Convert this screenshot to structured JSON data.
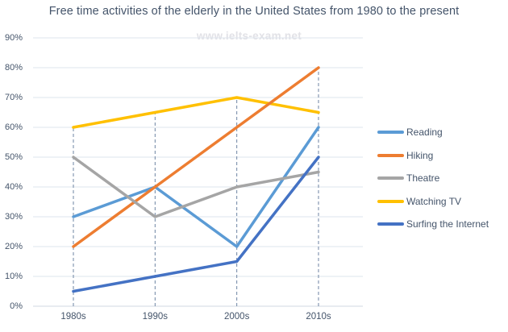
{
  "chart": {
    "title": "Free time activities of the elderly in the United States from 1980 to the present",
    "watermark": "www.ielts-exam.net"
  },
  "chart_data": {
    "type": "line",
    "title": "Free time activities of the elderly in the United States from 1980 to the present",
    "watermark": "www.ielts-exam.net",
    "categories": [
      "1980s",
      "1990s",
      "2000s",
      "2010s"
    ],
    "y_ticks": [
      "0%",
      "10%",
      "20%",
      "30%",
      "40%",
      "50%",
      "60%",
      "70%",
      "80%",
      "90%"
    ],
    "ylim": [
      0,
      90
    ],
    "y_step": 10,
    "grid": true,
    "legend_position": "right",
    "series": [
      {
        "name": "Reading",
        "color": "#5B9BD5",
        "values": [
          30,
          40,
          20,
          60
        ]
      },
      {
        "name": "Hiking",
        "color": "#ED7D31",
        "values": [
          20,
          40,
          60,
          80
        ]
      },
      {
        "name": "Theatre",
        "color": "#A5A5A5",
        "values": [
          50,
          30,
          40,
          45
        ]
      },
      {
        "name": "Watching TV",
        "color": "#FFC000",
        "values": [
          60,
          65,
          70,
          65
        ]
      },
      {
        "name": "Surfing the Internet",
        "color": "#4472C4",
        "values": [
          5,
          10,
          15,
          50
        ]
      }
    ],
    "draw_order": [
      "Reading",
      "Watching TV",
      "Hiking",
      "Theatre",
      "Surfing the Internet"
    ],
    "droplines": {
      "style": "dashed",
      "at_each_category_to": "max-series-value"
    },
    "colors": {
      "title": "#44546A",
      "tick": "#44546A",
      "gridline": "#dee4ec",
      "axis": "#d2d9e2",
      "dropline": "#6e84a3",
      "watermark": "#e2e2e7",
      "background": "#ffffff"
    }
  }
}
